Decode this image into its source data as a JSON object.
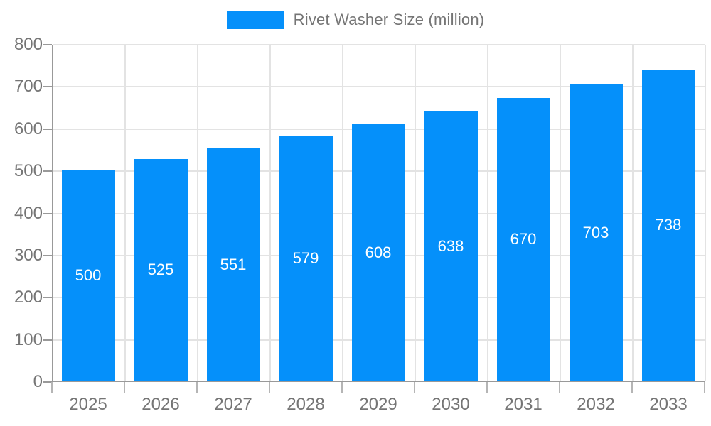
{
  "chart_data": {
    "type": "bar",
    "title": "Rivet Washer Size (million)",
    "legend": {
      "label": "Rivet Washer Size (million)",
      "position": "top-center",
      "swatch_color": "#0590fa"
    },
    "categories": [
      "2025",
      "2026",
      "2027",
      "2028",
      "2029",
      "2030",
      "2031",
      "2032",
      "2033"
    ],
    "values": [
      500,
      525,
      551,
      579,
      608,
      638,
      670,
      703,
      738
    ],
    "xlabel": "",
    "ylabel": "",
    "ylim": [
      0,
      800
    ],
    "y_tick_step": 100,
    "y_ticks": [
      "0",
      "100",
      "200",
      "300",
      "400",
      "500",
      "600",
      "700",
      "800"
    ],
    "grid": true,
    "bar_labels_inside": true,
    "colors": {
      "bar": "#0590fa",
      "axis": "#999999",
      "gridline": "#e3e3e3",
      "tick_label": "#757575",
      "bar_label": "#ffffff",
      "background": "#ffffff"
    }
  }
}
